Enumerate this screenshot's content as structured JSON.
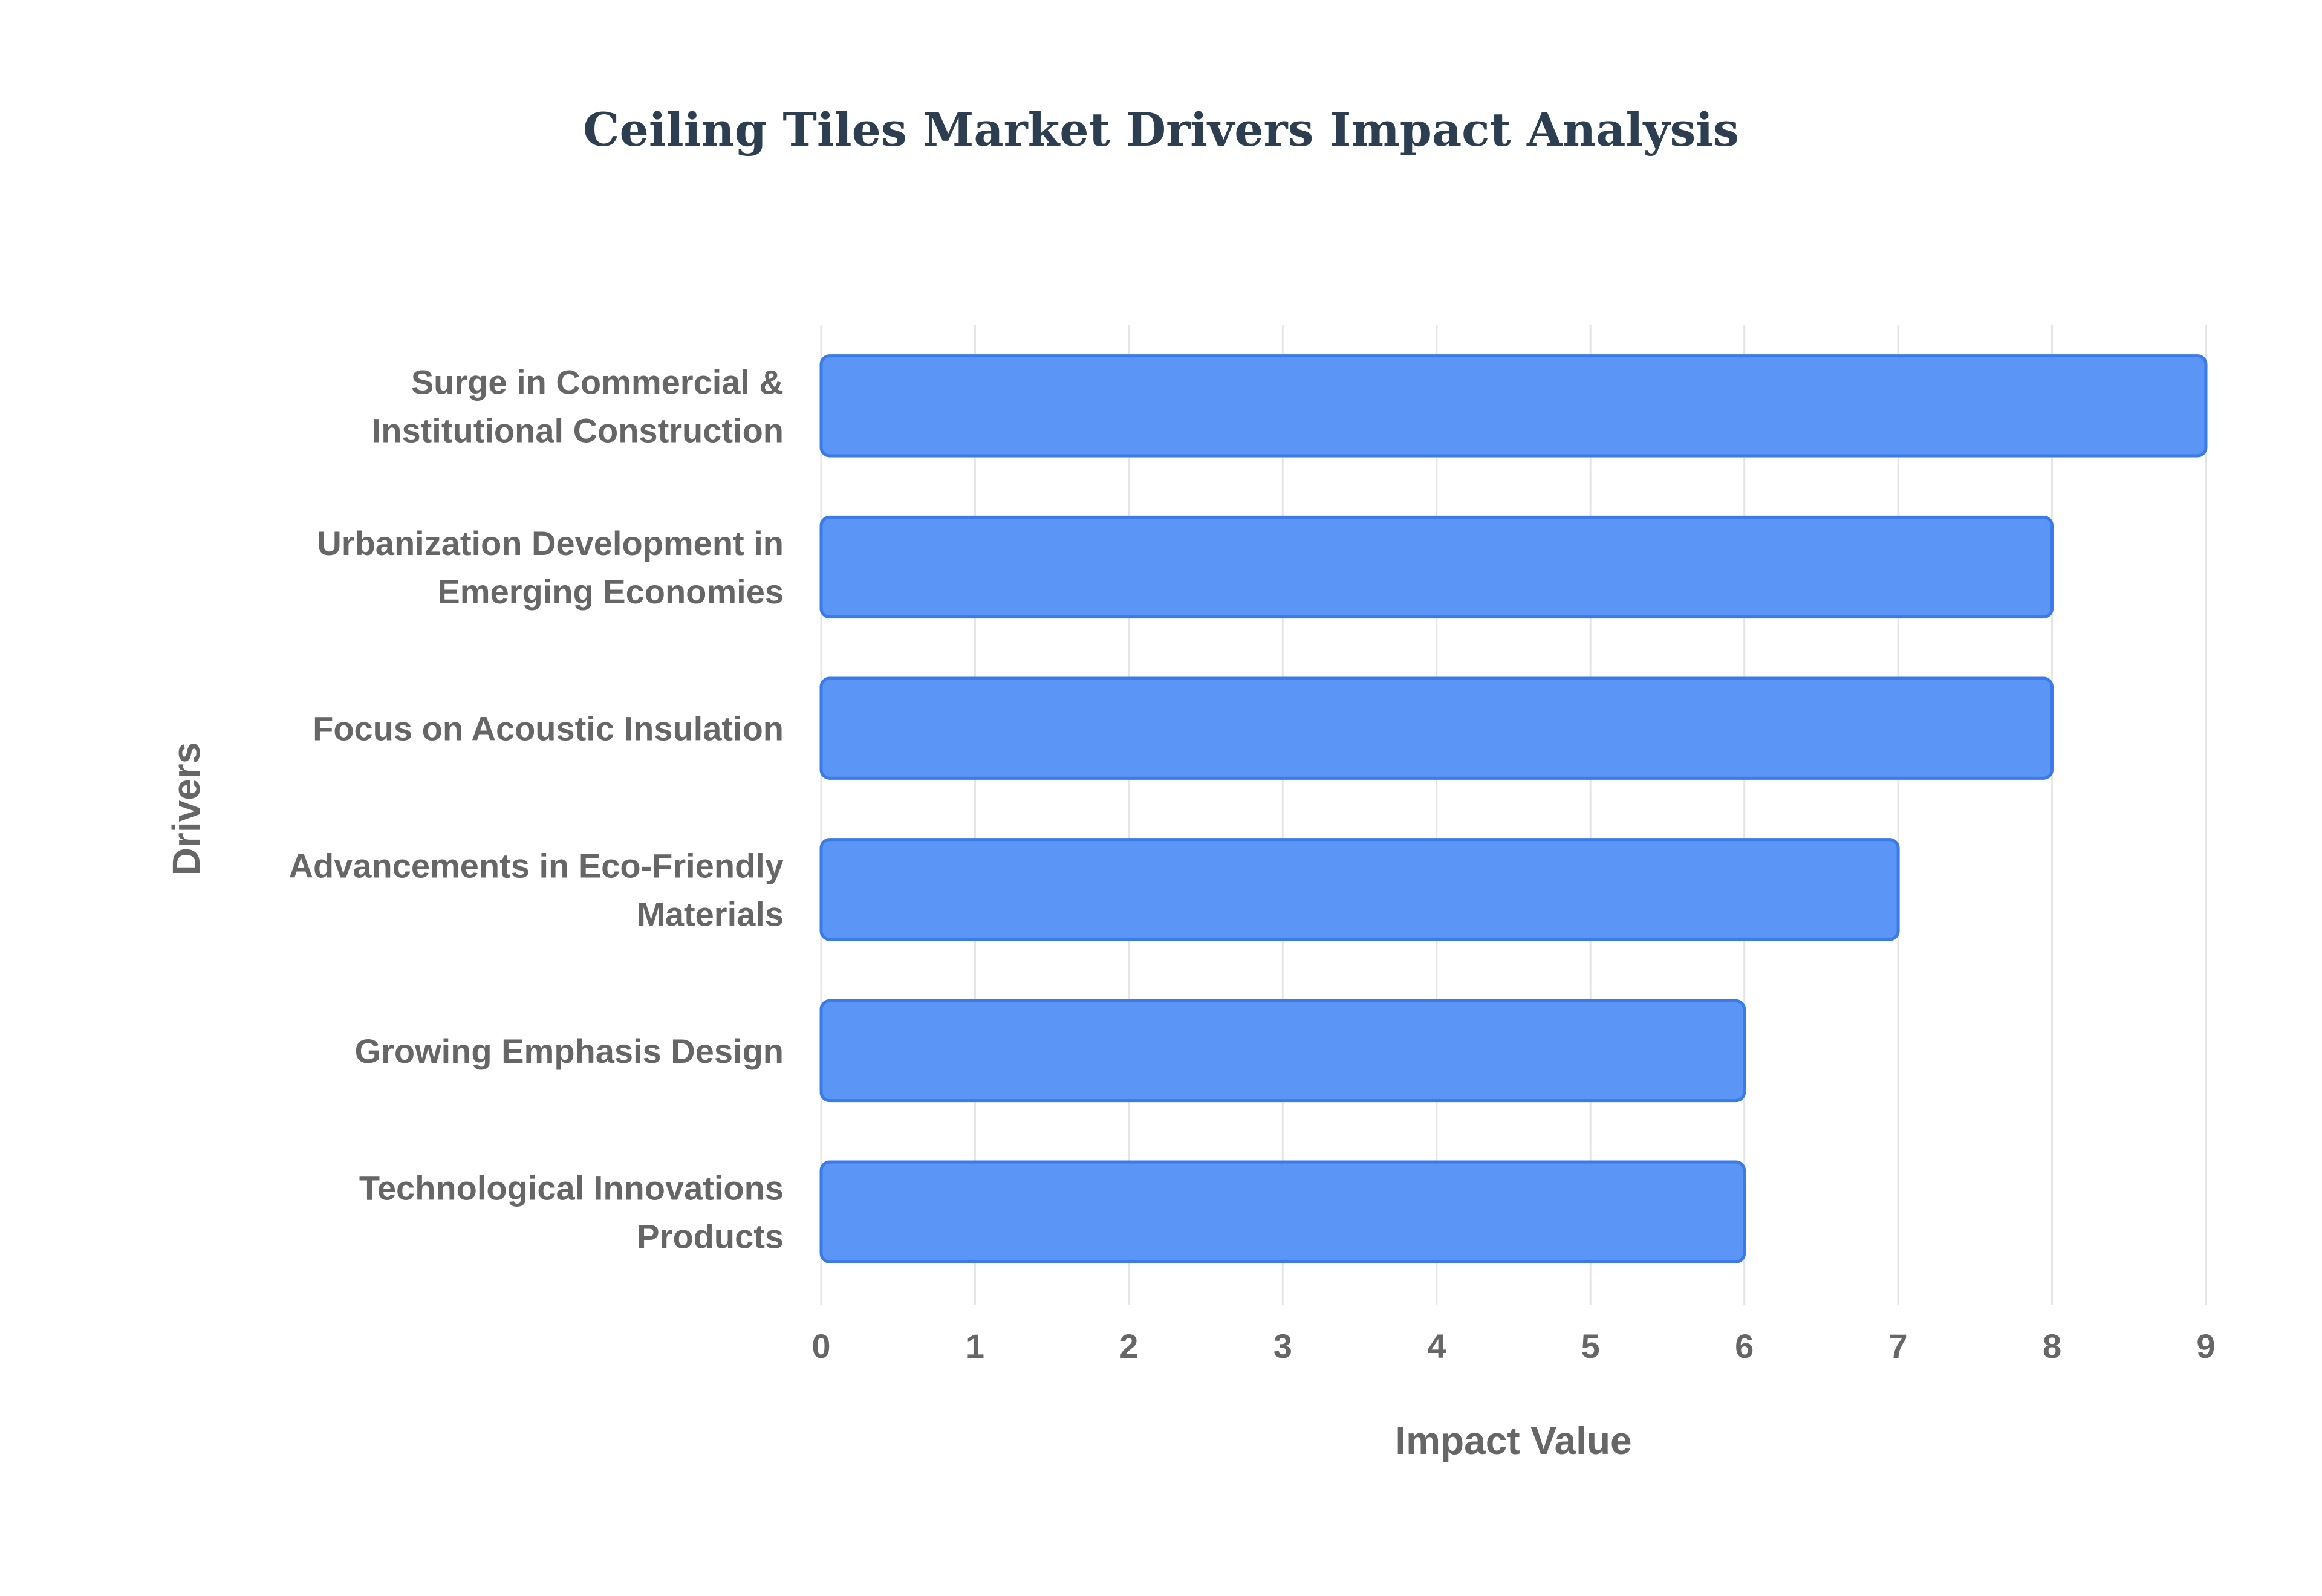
{
  "chart_data": {
    "type": "bar",
    "orientation": "horizontal",
    "title": "Ceiling Tiles Market Drivers Impact Analysis",
    "xlabel": "Impact Value",
    "ylabel": "Drivers",
    "categories": [
      [
        "Surge in Commercial &",
        "Institutional Construction"
      ],
      [
        "Urbanization Development in",
        "Emerging Economies"
      ],
      [
        "Focus on Acoustic Insulation"
      ],
      [
        "Advancements in Eco-Friendly",
        "Materials"
      ],
      [
        "Growing Emphasis Design"
      ],
      [
        "Technological Innovations",
        "Products"
      ]
    ],
    "values": [
      9,
      8,
      8,
      7,
      6,
      6
    ],
    "xlim": [
      0,
      9
    ],
    "xticks": [
      "0",
      "1",
      "2",
      "3",
      "4",
      "5",
      "6",
      "7",
      "8",
      "9"
    ],
    "grid": true,
    "legend": false,
    "colors": {
      "bar_fill": "#5b95f5",
      "bar_stroke": "#3b7ae8",
      "grid": "#e5e5e5",
      "text": "#666666",
      "title": "#2c3e50"
    }
  }
}
